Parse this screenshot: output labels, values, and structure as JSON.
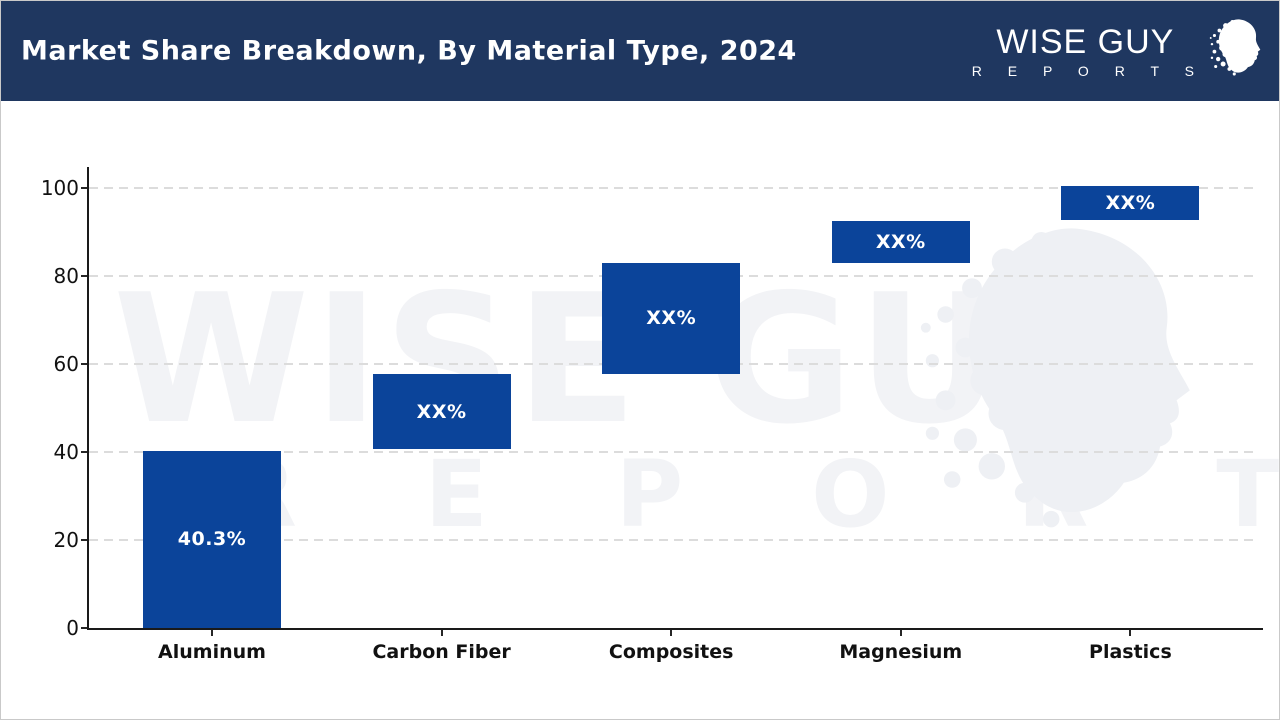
{
  "header": {
    "title": "Market Share Breakdown, By Material Type, 2024",
    "bg_color": "#1f3760",
    "logo": {
      "line1": "WISE GUY",
      "line2": "R E P O R T S"
    }
  },
  "watermark": {
    "line1": "WISE GUY",
    "line2": "R E P O R T S"
  },
  "chart_data": {
    "type": "bar",
    "subtype": "waterfall-stacked-breakdown",
    "title": "Market Share Breakdown, By Material Type, 2024",
    "categories": [
      "Aluminum",
      "Carbon Fiber",
      "Composites",
      "Magnesium",
      "Plastics"
    ],
    "bars": [
      {
        "category": "Aluminum",
        "base": 0,
        "top": 40.3,
        "label": "40.3%"
      },
      {
        "category": "Carbon Fiber",
        "base": 40.7,
        "top": 57.7,
        "label": "XX%"
      },
      {
        "category": "Composites",
        "base": 57.7,
        "top": 83.0,
        "label": "XX%"
      },
      {
        "category": "Magnesium",
        "base": 83.0,
        "top": 92.5,
        "label": "XX%"
      },
      {
        "category": "Plastics",
        "base": 92.7,
        "top": 100.4,
        "label": "XX%"
      }
    ],
    "y_ticks": [
      0,
      20,
      40,
      60,
      80,
      100
    ],
    "ylim": [
      0,
      104
    ],
    "xlabel": "",
    "ylabel": "",
    "legend": "none",
    "grid": "horizontal-dashed",
    "bar_color": "#0b449a",
    "bar_label_color": "#ffffff",
    "axis_color": "#1a1a1a",
    "gridline_color": "#dcdcdc"
  }
}
